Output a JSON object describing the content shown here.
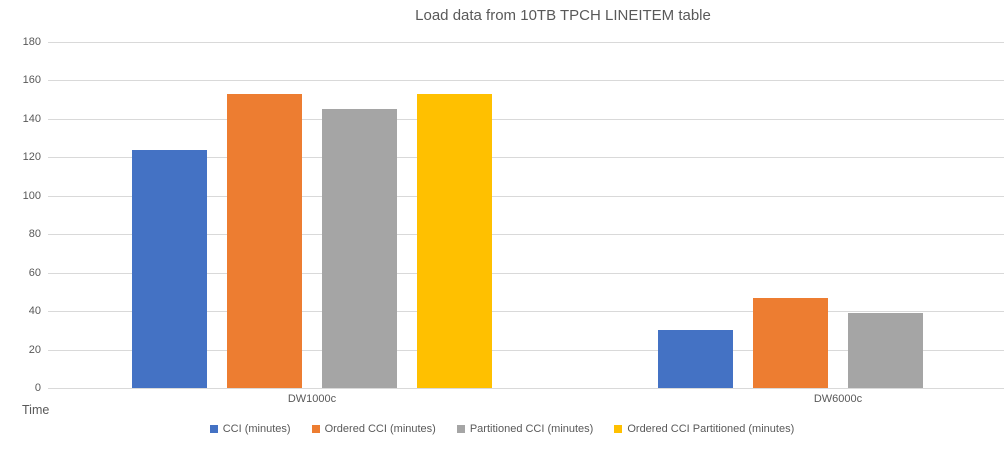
{
  "chart_data": {
    "type": "bar",
    "title": "Load data from 10TB TPCH LINEITEM table",
    "ylabel": "Time",
    "categories": [
      "DW1000c",
      "DW6000c"
    ],
    "series": [
      {
        "name": "CCI (minutes)",
        "color": "#4472C4",
        "values": [
          124,
          30
        ]
      },
      {
        "name": "Ordered CCI (minutes)",
        "color": "#ED7D31",
        "values": [
          153,
          47
        ]
      },
      {
        "name": "Partitioned CCI (minutes)",
        "color": "#A5A5A5",
        "values": [
          145,
          39
        ]
      },
      {
        "name": "Ordered CCI Partitioned (minutes)",
        "color": "#FFC000",
        "values": [
          153,
          null
        ]
      }
    ],
    "ylim": [
      0,
      180
    ],
    "ytick_step": 20,
    "yticks": [
      0,
      20,
      40,
      60,
      80,
      100,
      120,
      140,
      160,
      180
    ],
    "grid": true,
    "legend_position": "bottom",
    "colors": {
      "grid": "#d9d9d9",
      "axis": "#d9d9d9",
      "text": "#595959",
      "background": "#ffffff"
    }
  }
}
